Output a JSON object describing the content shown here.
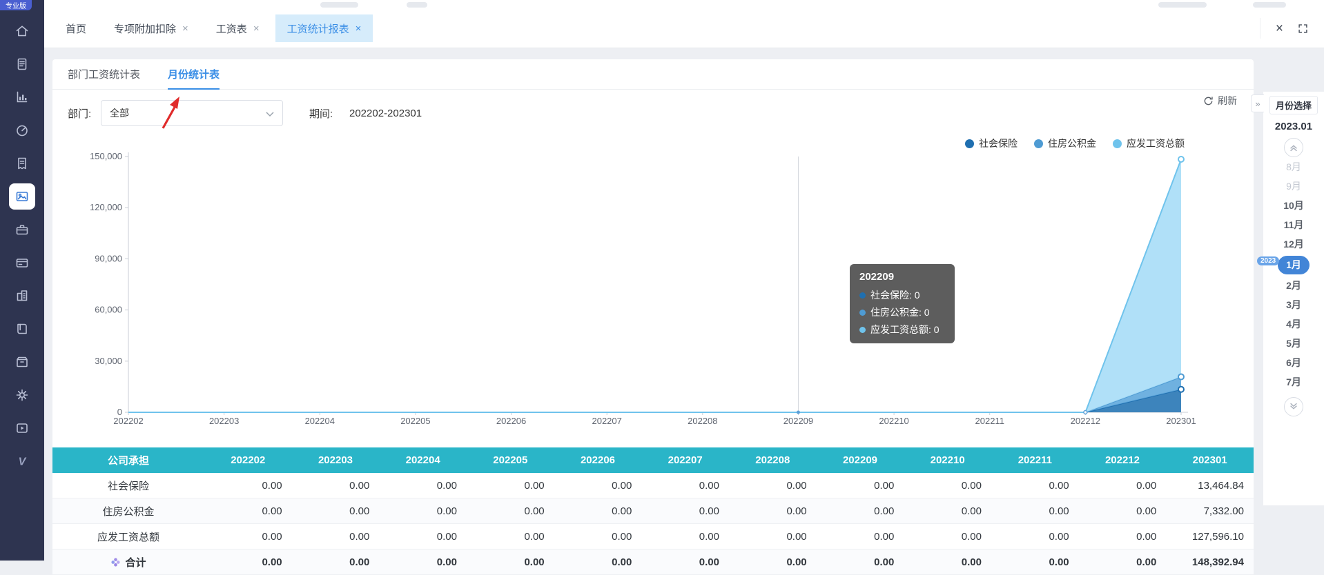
{
  "edition_badge": "专业版",
  "tabbar": {
    "tabs": [
      {
        "label": "首页",
        "closable": false,
        "active": false
      },
      {
        "label": "专项附加扣除",
        "closable": true,
        "active": false
      },
      {
        "label": "工资表",
        "closable": true,
        "active": false
      },
      {
        "label": "工资统计报表",
        "closable": true,
        "active": true
      }
    ],
    "close_all_icon": "×"
  },
  "subtabs": [
    {
      "label": "部门工资统计表",
      "active": false
    },
    {
      "label": "月份统计表",
      "active": true
    }
  ],
  "toolbar": {
    "refresh_label": "刷新"
  },
  "filters": {
    "dept_label": "部门:",
    "dept_value": "全部",
    "period_label": "期间:",
    "period_value": "202202-202301"
  },
  "chart_data": {
    "type": "area",
    "stacked": true,
    "x": [
      "202202",
      "202203",
      "202204",
      "202205",
      "202206",
      "202207",
      "202208",
      "202209",
      "202210",
      "202211",
      "202212",
      "202301"
    ],
    "series": [
      {
        "name": "社会保险",
        "color": "#1f6fb0",
        "fill": "#2d79b6",
        "values": [
          0,
          0,
          0,
          0,
          0,
          0,
          0,
          0,
          0,
          0,
          0,
          13464.84
        ]
      },
      {
        "name": "住房公积金",
        "color": "#4e9bd3",
        "fill": "#63aadd",
        "values": [
          0,
          0,
          0,
          0,
          0,
          0,
          0,
          0,
          0,
          0,
          0,
          7332.0
        ]
      },
      {
        "name": "应发工资总额",
        "color": "#6fc3ec",
        "fill": "#a9ddf7",
        "values": [
          0,
          0,
          0,
          0,
          0,
          0,
          0,
          0,
          0,
          0,
          0,
          127596.1
        ]
      }
    ],
    "ylim": [
      0,
      150000
    ],
    "yticks": [
      "0",
      "30,000",
      "60,000",
      "90,000",
      "120,000",
      "150,000"
    ],
    "legend_position": "top-right",
    "grid": false,
    "crosshair_x": "202209"
  },
  "tooltip": {
    "title": "202209",
    "rows": [
      {
        "label": "社会保险",
        "value": "0"
      },
      {
        "label": "住房公积金",
        "value": "0"
      },
      {
        "label": "应发工资总额",
        "value": "0"
      }
    ]
  },
  "month_panel": {
    "title": "月份选择",
    "current": "2023.01",
    "year_badge": "2023",
    "months": [
      {
        "label": "8月",
        "state": "disabled"
      },
      {
        "label": "9月",
        "state": "disabled"
      },
      {
        "label": "10月",
        "state": "normal"
      },
      {
        "label": "11月",
        "state": "normal"
      },
      {
        "label": "12月",
        "state": "normal"
      },
      {
        "label": "1月",
        "state": "active"
      },
      {
        "label": "2月",
        "state": "normal"
      },
      {
        "label": "3月",
        "state": "normal"
      },
      {
        "label": "4月",
        "state": "normal"
      },
      {
        "label": "5月",
        "state": "normal"
      },
      {
        "label": "6月",
        "state": "normal"
      },
      {
        "label": "7月",
        "state": "normal"
      }
    ]
  },
  "table": {
    "header": [
      "公司承担",
      "202202",
      "202203",
      "202204",
      "202205",
      "202206",
      "202207",
      "202208",
      "202209",
      "202210",
      "202211",
      "202212",
      "202301"
    ],
    "rows": [
      {
        "label": "社会保险",
        "bold": false,
        "icon": false,
        "values": [
          "0.00",
          "0.00",
          "0.00",
          "0.00",
          "0.00",
          "0.00",
          "0.00",
          "0.00",
          "0.00",
          "0.00",
          "0.00",
          "13,464.84"
        ]
      },
      {
        "label": "住房公积金",
        "bold": false,
        "icon": false,
        "values": [
          "0.00",
          "0.00",
          "0.00",
          "0.00",
          "0.00",
          "0.00",
          "0.00",
          "0.00",
          "0.00",
          "0.00",
          "0.00",
          "7,332.00"
        ]
      },
      {
        "label": "应发工资总额",
        "bold": false,
        "icon": false,
        "values": [
          "0.00",
          "0.00",
          "0.00",
          "0.00",
          "0.00",
          "0.00",
          "0.00",
          "0.00",
          "0.00",
          "0.00",
          "0.00",
          "127,596.10"
        ]
      },
      {
        "label": "合计",
        "bold": true,
        "icon": true,
        "values": [
          "0.00",
          "0.00",
          "0.00",
          "0.00",
          "0.00",
          "0.00",
          "0.00",
          "0.00",
          "0.00",
          "0.00",
          "0.00",
          "148,392.94"
        ]
      }
    ]
  },
  "sidebar": {
    "items": [
      {
        "icon": "home",
        "active": false
      },
      {
        "icon": "document",
        "active": false
      },
      {
        "icon": "bar-chart",
        "active": false
      },
      {
        "icon": "gauge",
        "active": false
      },
      {
        "icon": "invoice",
        "active": false
      },
      {
        "icon": "picture",
        "active": true
      },
      {
        "icon": "briefcase",
        "active": false
      },
      {
        "icon": "bank-card",
        "active": false
      },
      {
        "icon": "building",
        "active": false
      },
      {
        "icon": "book",
        "active": false
      },
      {
        "icon": "archive-box",
        "active": false
      },
      {
        "icon": "gear",
        "active": false
      },
      {
        "icon": "play",
        "active": false
      },
      {
        "icon": "v-logo",
        "active": false
      }
    ]
  }
}
